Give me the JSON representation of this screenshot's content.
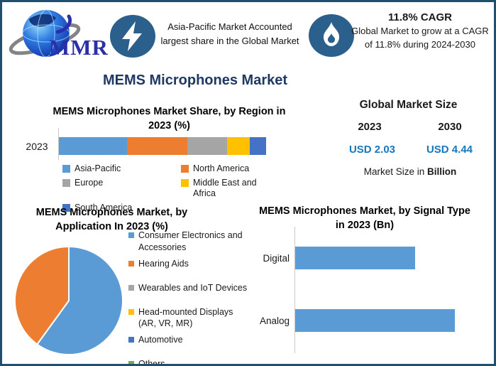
{
  "header": {
    "logo": {
      "text": "MMR",
      "icon": "mmr-globe-logo"
    },
    "highlight": {
      "icon": "lightning-bolt-icon",
      "text": "Asia-Pacific Market Accounted largest share in the Global Market"
    },
    "cagr": {
      "icon": "flame-icon",
      "title": "11.8% CAGR",
      "body": "Global Market to grow at a CAGR of 11.8% during 2024-2030"
    }
  },
  "main_title": "MEMS Microphones Market",
  "market_size": {
    "title": "Global Market Size",
    "year_left": "2023",
    "year_right": "2030",
    "value_left": "USD 2.03",
    "value_right": "USD 4.44",
    "note_prefix": "Market Size in ",
    "note_bold": "Billion"
  },
  "colors": {
    "border": "#1F4E6E",
    "icon_ellipse": "#2B5F8C",
    "navy_title": "#1F3864",
    "usd_blue": "#1777BC",
    "axis_gray": "#C9C9C9"
  },
  "chart_data": [
    {
      "id": "region_share",
      "type": "bar",
      "subtype": "stacked-horizontal",
      "title": "MEMS Microphones Market Share, by Region in 2023 (%)",
      "categories": [
        "2023"
      ],
      "series": [
        {
          "name": "Asia-Pacific",
          "values": [
            33
          ],
          "color": "#5B9BD5"
        },
        {
          "name": "North America",
          "values": [
            29
          ],
          "color": "#ED7D31"
        },
        {
          "name": "Europe",
          "values": [
            19
          ],
          "color": "#A5A5A5"
        },
        {
          "name": "Middle East and Africa",
          "values": [
            11
          ],
          "color": "#FFC000"
        },
        {
          "name": "South America",
          "values": [
            8
          ],
          "color": "#4472C4"
        }
      ],
      "xlabel": "",
      "ylabel": "",
      "xlim": [
        0,
        100
      ],
      "grid": false,
      "legend_position": "bottom"
    },
    {
      "id": "application_share",
      "type": "pie",
      "title": "MEMS Microphones Market, by Application In 2023 (%)",
      "slices": [
        {
          "label": "Consumer Electronics and Accessories",
          "value": 60,
          "color": "#5B9BD5"
        },
        {
          "label": "Hearing Aids",
          "value": 40,
          "color": "#ED7D31"
        },
        {
          "label": "Wearables and IoT Devices",
          "value": 0,
          "color": "#A5A5A5"
        },
        {
          "label": "Head-mounted Displays (AR, VR, MR)",
          "value": 0,
          "color": "#FFC000"
        },
        {
          "label": "Automotive",
          "value": 0,
          "color": "#4472C4"
        },
        {
          "label": "Others",
          "value": 0,
          "color": "#70AD47"
        }
      ],
      "legend_position": "right"
    },
    {
      "id": "signal_type",
      "type": "bar",
      "subtype": "horizontal",
      "title": "MEMS Microphones Market, by Signal Type in 2023 (Bn)",
      "categories": [
        "Digital",
        "Analog"
      ],
      "values": [
        0.87,
        1.16
      ],
      "xlabel": "",
      "ylabel": "",
      "xlim": [
        0,
        1.2
      ],
      "grid": false,
      "bar_color": "#5B9BD5"
    }
  ]
}
